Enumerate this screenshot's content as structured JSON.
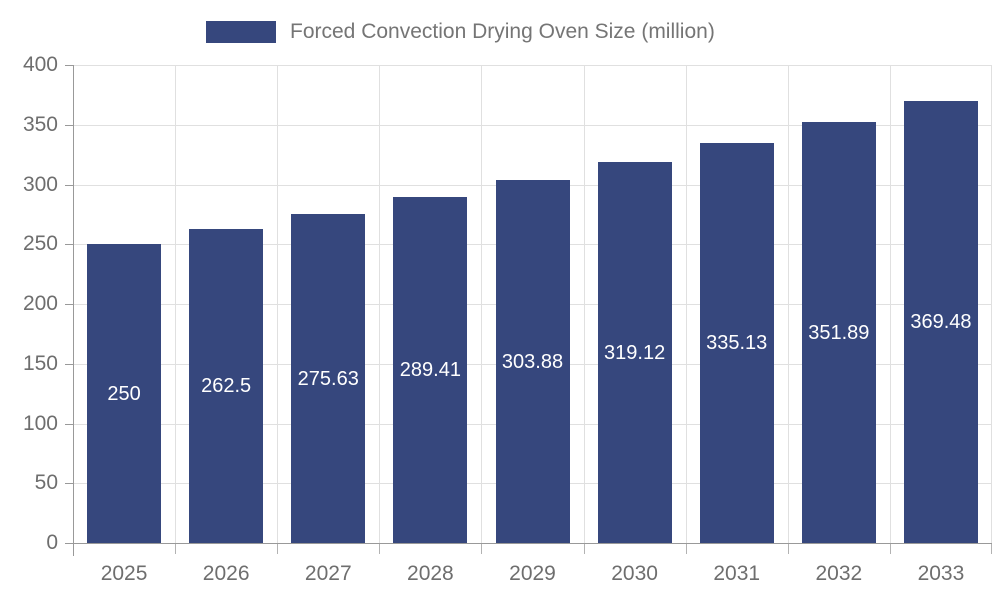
{
  "chart_data": {
    "type": "bar",
    "title": "Forced Convection Drying Oven Size (million)",
    "categories": [
      "2025",
      "2026",
      "2027",
      "2028",
      "2029",
      "2030",
      "2031",
      "2032",
      "2033"
    ],
    "values": [
      250,
      262.5,
      275.63,
      289.41,
      303.88,
      319.12,
      335.13,
      351.89,
      369.48
    ],
    "value_labels": [
      "250",
      "262.5",
      "275.63",
      "289.41",
      "303.88",
      "319.12",
      "335.13",
      "351.89",
      "369.48"
    ],
    "xlabel": "",
    "ylabel": "",
    "ylim": [
      0,
      400
    ],
    "yticks": [
      0,
      50,
      100,
      150,
      200,
      250,
      300,
      350,
      400
    ],
    "grid": "on",
    "legend_position": "top",
    "bar_label_position": "inside-middle",
    "colors": {
      "bar": "#36477D",
      "axis_line": "#999999",
      "grid_line": "#E0E0E0",
      "tick_line": "#B3B3B3",
      "axis_label": "#6E6E6E",
      "legend_text": "#757575",
      "bar_label": "#FFFFFF",
      "background": "#FFFFFF"
    }
  }
}
